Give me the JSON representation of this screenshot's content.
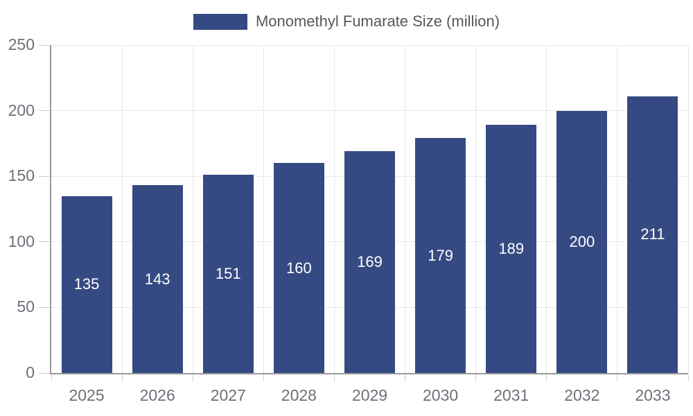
{
  "legend": {
    "label": "Monomethyl Fumarate Size (million)"
  },
  "chart_data": {
    "type": "bar",
    "title": "Monomethyl Fumarate Size (million)",
    "categories": [
      "2025",
      "2026",
      "2027",
      "2028",
      "2029",
      "2030",
      "2031",
      "2032",
      "2033"
    ],
    "series": [
      {
        "name": "Monomethyl Fumarate Size (million)",
        "values": [
          135,
          143,
          151,
          160,
          169,
          179,
          189,
          200,
          211
        ]
      }
    ],
    "xlabel": "",
    "ylabel": "",
    "ylim": [
      0,
      250
    ],
    "yticks": [
      0,
      50,
      100,
      150,
      200,
      250
    ],
    "grid": true,
    "legend_position": "top-center",
    "value_labels": "inside-center",
    "colors": {
      "bar": "#354a82",
      "grid": "#e8e8e8",
      "axis_line": "#999999",
      "tick": "#cccccc",
      "axis_text": "#6e7079",
      "legend_text": "#54585d",
      "value_label_text": "#ffffff",
      "background": "#ffffff"
    }
  }
}
